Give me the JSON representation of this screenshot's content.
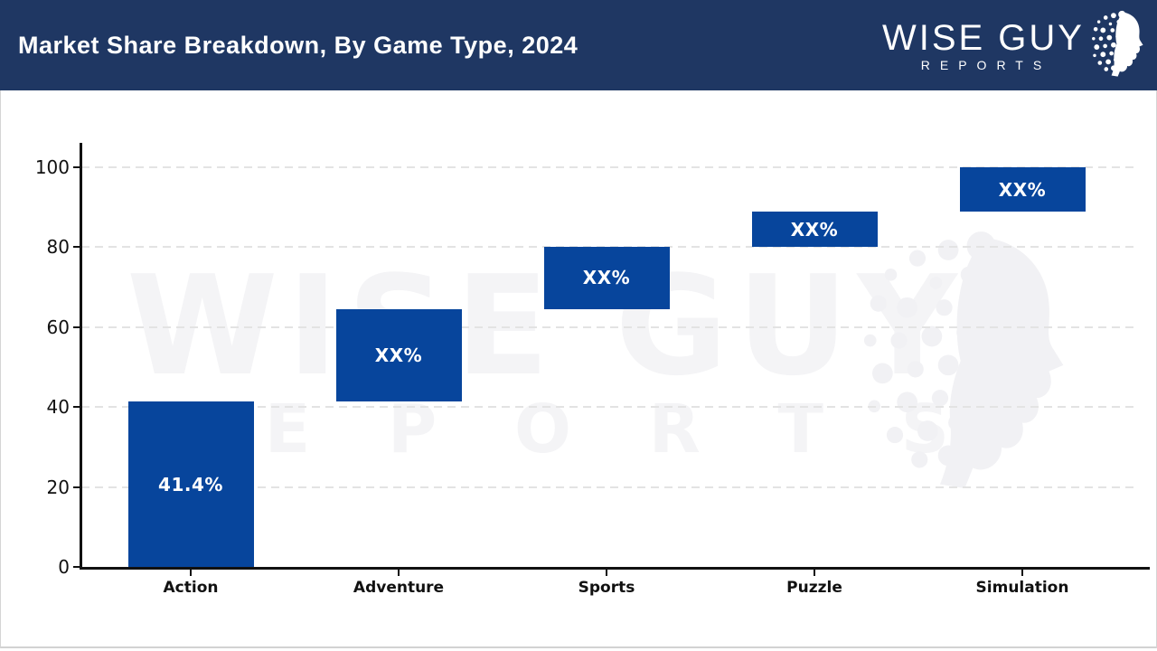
{
  "header": {
    "title": "Market Share Breakdown, By Game Type, 2024",
    "bg_color": "#1f3763",
    "logo": {
      "line1": "WISE GUY",
      "line2": "REPORTS",
      "face_icon": "dotted-face-profile-icon"
    }
  },
  "watermark": {
    "line1": "WISE GUY",
    "line2": "R E P O R T S"
  },
  "chart_data": {
    "type": "bar",
    "subtype": "waterfall",
    "title": "Market Share Breakdown, By Game Type, 2024",
    "categories": [
      "Action",
      "Adventure",
      "Sports",
      "Puzzle",
      "Simulation"
    ],
    "segments": [
      {
        "category": "Action",
        "start": 0,
        "end": 41.4,
        "label": "41.4%"
      },
      {
        "category": "Adventure",
        "start": 41.4,
        "end": 64.5,
        "label": "XX%"
      },
      {
        "category": "Sports",
        "start": 64.5,
        "end": 80.1,
        "label": "XX%"
      },
      {
        "category": "Puzzle",
        "start": 80.1,
        "end": 88.9,
        "label": "XX%"
      },
      {
        "category": "Simulation",
        "start": 88.9,
        "end": 100,
        "label": "XX%"
      }
    ],
    "yticks": [
      0,
      20,
      40,
      60,
      80,
      100
    ],
    "ylim": [
      0,
      106.5
    ],
    "grid": "horizontal dashed",
    "legend": "none",
    "xlabel": "",
    "ylabel": "",
    "bar_color": "#07459c",
    "bar_label_color": "#ffffff",
    "axis_color": "#111111",
    "gridline_color": "#e3e3e3"
  }
}
